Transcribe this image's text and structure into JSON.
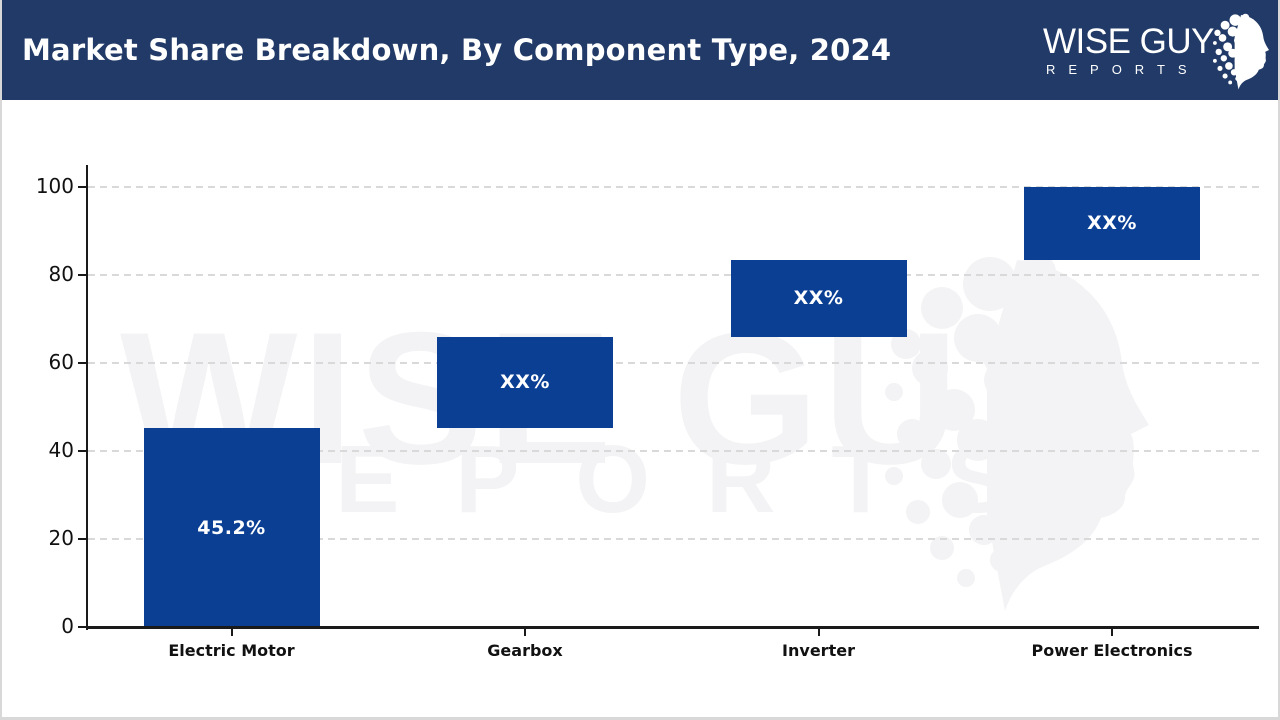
{
  "header": {
    "title": "Market Share Breakdown, By Component Type, 2024",
    "logo": {
      "line1": "WISE GUY",
      "line2": "REPORTS"
    }
  },
  "watermark": {
    "line1": "WISE GUY",
    "line2": "REPORTS"
  },
  "colors": {
    "header_bg": "#213a67",
    "bar": "#0b3f94",
    "grid": "#d9d9d9",
    "axis": "#1a1a1a",
    "watermark": "#f3f3f5",
    "bar_label": "#ffffff"
  },
  "chart_data": {
    "type": "bar",
    "subtype": "waterfall",
    "title": "Market Share Breakdown, By Component Type, 2024",
    "xlabel": "",
    "ylabel": "",
    "categories": [
      "Electric Motor",
      "Gearbox",
      "Inverter",
      "Power Electronics"
    ],
    "segments": [
      [
        0,
        45.2
      ],
      [
        45.2,
        66.0
      ],
      [
        66.0,
        83.5
      ],
      [
        83.5,
        100.0
      ]
    ],
    "values": [
      45.2,
      20.8,
      17.5,
      16.5
    ],
    "bar_labels": [
      "45.2%",
      "XX%",
      "XX%",
      "XX%"
    ],
    "y_ticks": [
      0,
      20,
      40,
      60,
      80,
      100
    ],
    "ylim": [
      0,
      105
    ],
    "grid": "horizontal-dashed",
    "legend": "none"
  }
}
